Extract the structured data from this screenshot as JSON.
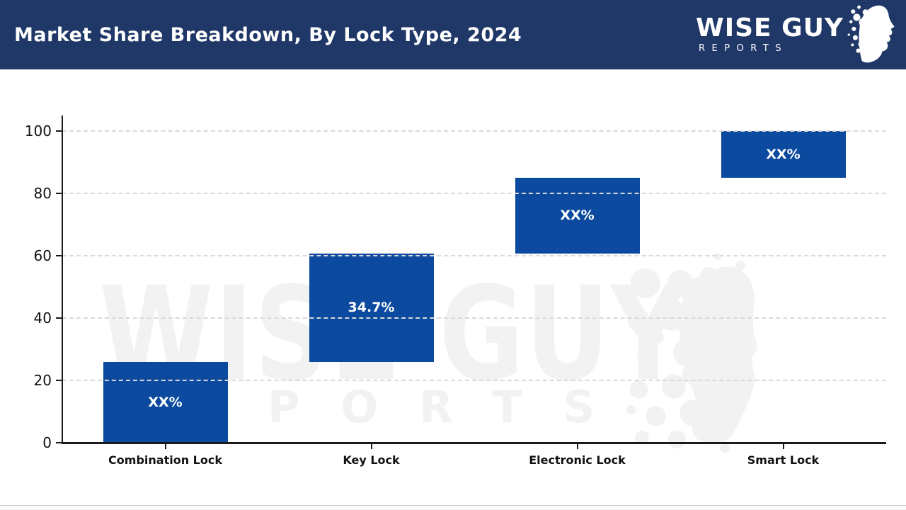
{
  "header": {
    "title": "Market Share Breakdown, By Lock Type, 2024",
    "logo": {
      "line1": "WISE GUY",
      "line2": "REPORTS"
    }
  },
  "watermark": {
    "line1": "WISE GUY",
    "line2": "REPORTS"
  },
  "colors": {
    "header_bg": "#1f3867",
    "bar": "#0b4a9e",
    "bar_label": "#ffffff",
    "grid": "#d9d9d9",
    "axis": "#1a1a1a",
    "watermark": "#f2f2f2"
  },
  "chart_data": {
    "type": "bar",
    "variant": "floating-waterfall",
    "title": "Market Share Breakdown, By Lock Type, 2024",
    "categories": [
      "Combination Lock",
      "Key Lock",
      "Electronic Lock",
      "Smart Lock"
    ],
    "series": [
      {
        "name": "Market share (%)",
        "segments": [
          {
            "category": "Combination Lock",
            "start": 0,
            "end": 26.0,
            "value": 26.0,
            "label": "XX%"
          },
          {
            "category": "Key Lock",
            "start": 26.0,
            "end": 60.7,
            "value": 34.7,
            "label": "34.7%"
          },
          {
            "category": "Electronic Lock",
            "start": 60.7,
            "end": 85.0,
            "value": 24.3,
            "label": "XX%"
          },
          {
            "category": "Smart Lock",
            "start": 85.0,
            "end": 100.0,
            "value": 15.0,
            "label": "XX%"
          }
        ]
      }
    ],
    "xlabel": "",
    "ylabel": "",
    "yticks": [
      0,
      20,
      40,
      60,
      80,
      100
    ],
    "ylim": [
      0,
      105
    ],
    "grid": "horizontal-dashed",
    "legend": "none",
    "bar_color": "#0b4a9e"
  }
}
